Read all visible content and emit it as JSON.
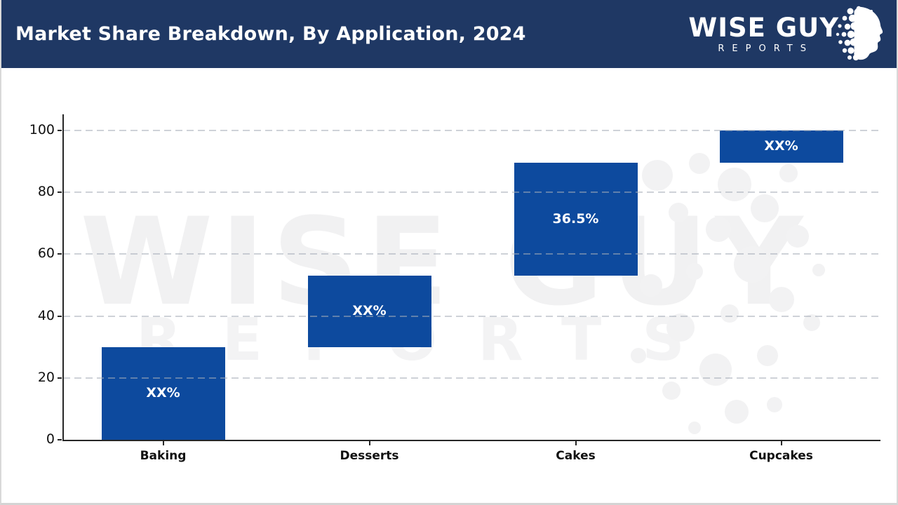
{
  "header": {
    "title": "Market Share Breakdown, By Application, 2024"
  },
  "logo": {
    "line1": "WISE GUY",
    "line2": "REPORTS"
  },
  "watermark": {
    "line1": "WISE GUY",
    "line2": "REPORTS"
  },
  "chart_data": {
    "type": "bar",
    "subtype": "waterfall",
    "title": "Market Share Breakdown, By Application, 2024",
    "categories": [
      "Baking",
      "Desserts",
      "Cakes",
      "Cupcakes"
    ],
    "segments": [
      {
        "category": "Baking",
        "start": 0,
        "end": 30,
        "label": "XX%"
      },
      {
        "category": "Desserts",
        "start": 30,
        "end": 53,
        "label": "XX%"
      },
      {
        "category": "Cakes",
        "start": 53,
        "end": 89.5,
        "label": "36.5%",
        "value": 36.5
      },
      {
        "category": "Cupcakes",
        "start": 89.5,
        "end": 100,
        "label": "XX%"
      }
    ],
    "yticks": [
      0,
      20,
      40,
      60,
      80,
      100
    ],
    "ylim": [
      0,
      105
    ],
    "grid": "horizontal-dashed",
    "legend": "none",
    "bar_color": "#0d4a9e",
    "bar_label_color": "#ffffff"
  },
  "colors": {
    "header_bg": "#1f3864",
    "bar": "#0d4a9e",
    "grid": "#c9ced6",
    "watermark": "#f1f1f2",
    "axis": "#262626"
  }
}
